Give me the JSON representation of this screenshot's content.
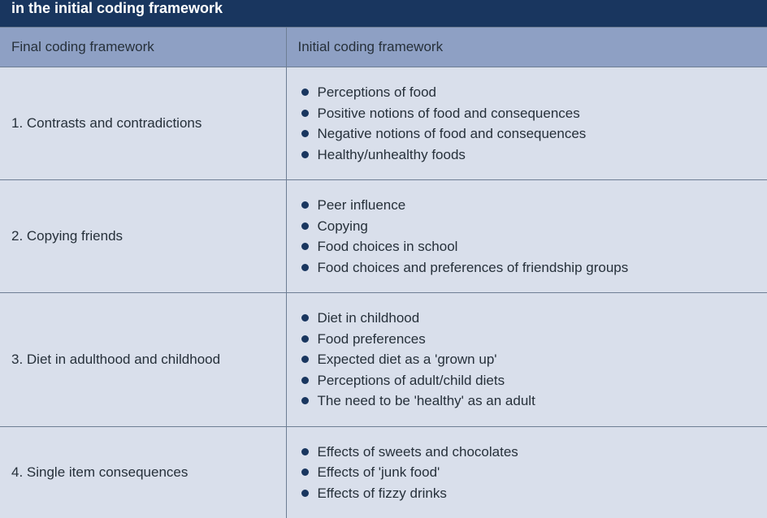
{
  "colors": {
    "title_bg": "#19365f",
    "title_text": "#ffffff",
    "header_bg": "#8ea0c4",
    "header_text": "#26303a",
    "body_bg": "#d9dfeb",
    "body_text": "#26303a",
    "border": "#6e7e94",
    "bullet": "#19365f"
  },
  "fontsizes": {
    "title": 18,
    "header": 17,
    "body": 17
  },
  "title": "in the initial coding framework",
  "headers": {
    "left": "Final coding framework",
    "right": "Initial coding framework"
  },
  "rows": [
    {
      "left": "1. Contrasts and contradictions",
      "right": [
        "Perceptions of food",
        "Positive notions of food and consequences",
        "Negative notions of food and consequences",
        "Healthy/unhealthy foods"
      ]
    },
    {
      "left": "2. Copying friends",
      "right": [
        "Peer influence",
        "Copying",
        "Food choices in school",
        "Food choices and preferences of friendship groups"
      ]
    },
    {
      "left": "3. Diet in adulthood and childhood",
      "right": [
        "Diet in childhood",
        "Food preferences",
        "Expected diet as a 'grown up'",
        "Perceptions of adult/child diets",
        "The need to be 'healthy' as an adult"
      ]
    },
    {
      "left": "4. Single item consequences",
      "right": [
        "Effects of sweets and chocolates",
        "Effects of 'junk food'",
        "Effects of fizzy drinks"
      ]
    }
  ]
}
